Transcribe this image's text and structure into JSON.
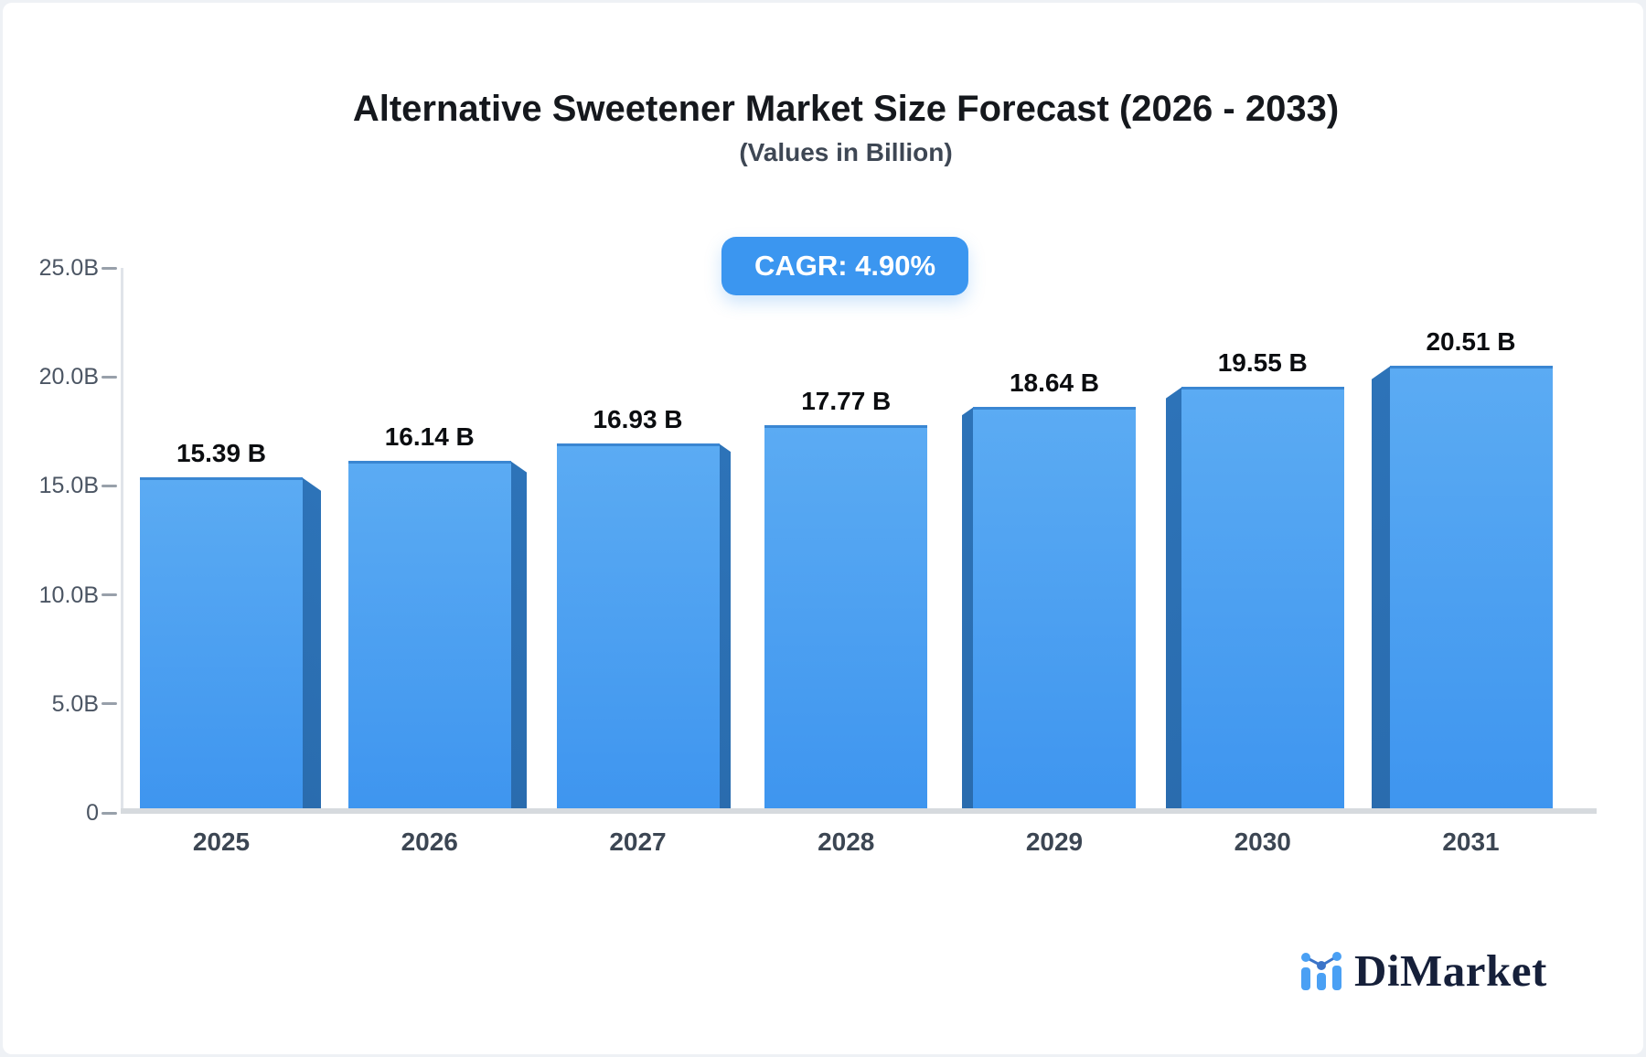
{
  "title": "Alternative Sweetener Market Size Forecast (2026 - 2033)",
  "subtitle": "(Values in Billion)",
  "badge": {
    "label": "CAGR: 4.90%"
  },
  "chart_data": {
    "type": "bar",
    "title": "Alternative Sweetener Market Size Forecast (2026 - 2033)",
    "subtitle": "(Values in Billion)",
    "categories": [
      "2025",
      "2026",
      "2027",
      "2028",
      "2029",
      "2030",
      "2031"
    ],
    "values": [
      15.39,
      16.14,
      16.93,
      17.77,
      18.64,
      19.55,
      20.51
    ],
    "bar_labels": [
      "15.39 B",
      "16.14 B",
      "16.93 B",
      "17.77 B",
      "18.64 B",
      "19.55 B",
      "20.51 B"
    ],
    "unit": "B",
    "xlabel": "",
    "ylabel": "",
    "ylim": [
      0,
      25
    ],
    "ytick_values": [
      25,
      20,
      15,
      10,
      5,
      0
    ],
    "ytick_labels": [
      "25.0B",
      "20.0B",
      "15.0B",
      "10.0B",
      "5.0B",
      "0"
    ],
    "grid": false,
    "legend": false,
    "bar_style": "3d-perspective"
  },
  "watermark": {
    "brand": "DiMarket",
    "icon": "mini-bar-chart-logo-icon"
  },
  "colors": {
    "accent": "#3b96f0",
    "bar_face_top": "#5babf3",
    "bar_face_bottom": "#3e95ef",
    "bar_side": "#2d73b8",
    "bar_top_edge": "#3a86d2",
    "baseline": "#d6dade",
    "axis_line": "#e0e4e9",
    "tick": "#98a0aa",
    "ytick_text": "#4b5563",
    "xtick_text": "#3c4653",
    "title_text": "#15181d",
    "subtitle_text": "#3e4754",
    "value_label_text": "#0b0d10",
    "badge_bg": "#3b96f0",
    "badge_text": "#ffffff",
    "brand_text": "#16203a",
    "logo_blue": "#4aa0f4",
    "logo_dark_blue": "#3b74c9",
    "page_bg": "#eef1f5",
    "card_bg": "#ffffff"
  }
}
